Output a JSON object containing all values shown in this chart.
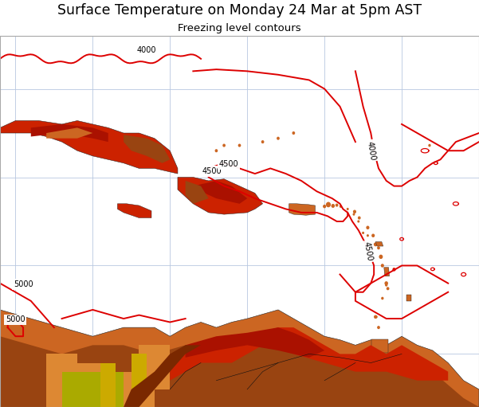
{
  "title": "Surface Temperature on Monday 24 Mar at 5pm AST",
  "subtitle": "Freezing level contours",
  "title_fontsize": 12.5,
  "subtitle_fontsize": 9.5,
  "ocean_color": "#c8d4ee",
  "title_bg": "#ffffff",
  "border_color": "#aaaaaa",
  "contour_color": "#dd0000",
  "contour_linewidth": 1.4,
  "contour_label_fontsize": 7,
  "grid_color": "#b8c8e0",
  "grid_alpha": 0.9,
  "fig_width": 6.01,
  "fig_height": 5.11,
  "dpi": 100,
  "lon_min": -86,
  "lon_max": -55,
  "lat_min": 7,
  "lat_max": 28
}
